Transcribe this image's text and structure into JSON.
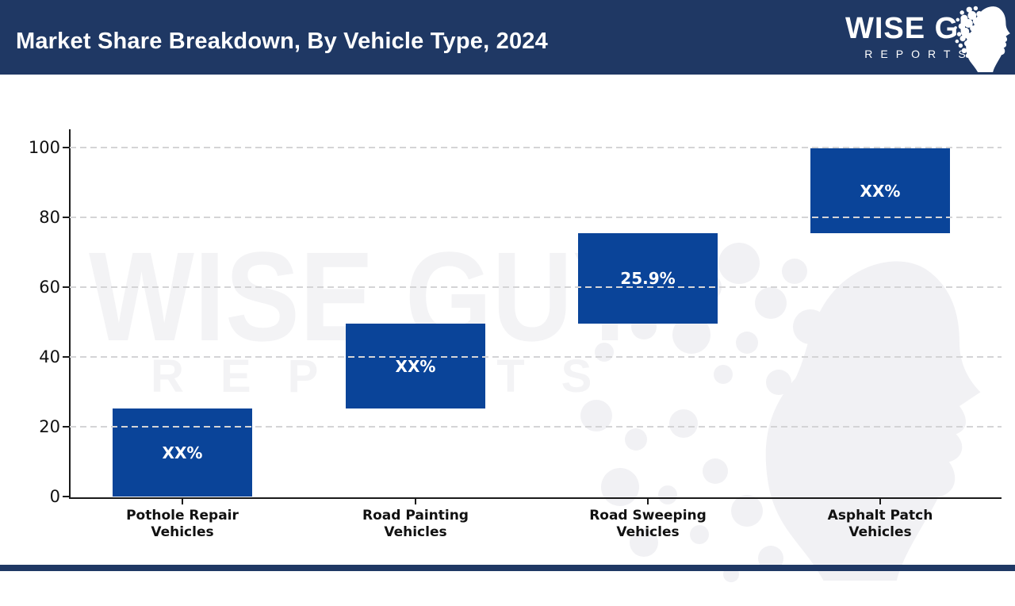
{
  "header": {
    "title": "Market Share Breakdown, By Vehicle Type, 2024",
    "logo": {
      "brand_top": "WISE GUY",
      "brand_bottom": "REPORTS"
    }
  },
  "watermark": {
    "line1": "WISE GUY",
    "line2": "REPORTS"
  },
  "colors": {
    "header_bg": "#1f3864",
    "footer_bg": "#1f3864",
    "bar_fill": "#0a4499",
    "bar_label_text": "#ffffff",
    "axis": "#1a1a1a",
    "gridline": "#d4d4d6",
    "watermark": "#f3f3f5"
  },
  "chart_data": {
    "type": "bar",
    "subtype": "floating-waterfall",
    "title": "Market Share Breakdown, By Vehicle Type, 2024",
    "categories": [
      "Pothole Repair\nVehicles",
      "Road Painting\nVehicles",
      "Road Sweeping\nVehicles",
      "Asphalt Patch\nVehicles"
    ],
    "segments": [
      {
        "category": "Pothole Repair Vehicles",
        "start": 0,
        "end": 25.2,
        "label": "XX%"
      },
      {
        "category": "Road Painting Vehicles",
        "start": 25.2,
        "end": 49.5,
        "label": "XX%"
      },
      {
        "category": "Road Sweeping Vehicles",
        "start": 49.5,
        "end": 75.4,
        "label": "25.9%"
      },
      {
        "category": "Asphalt Patch Vehicles",
        "start": 75.4,
        "end": 99.8,
        "label": "XX%"
      }
    ],
    "xlabel": "",
    "ylabel": "",
    "ylim": [
      0,
      105
    ],
    "yticks": [
      0,
      20,
      40,
      60,
      80,
      100
    ],
    "grid": true,
    "gridline_style": "dashed",
    "legend": "none"
  }
}
